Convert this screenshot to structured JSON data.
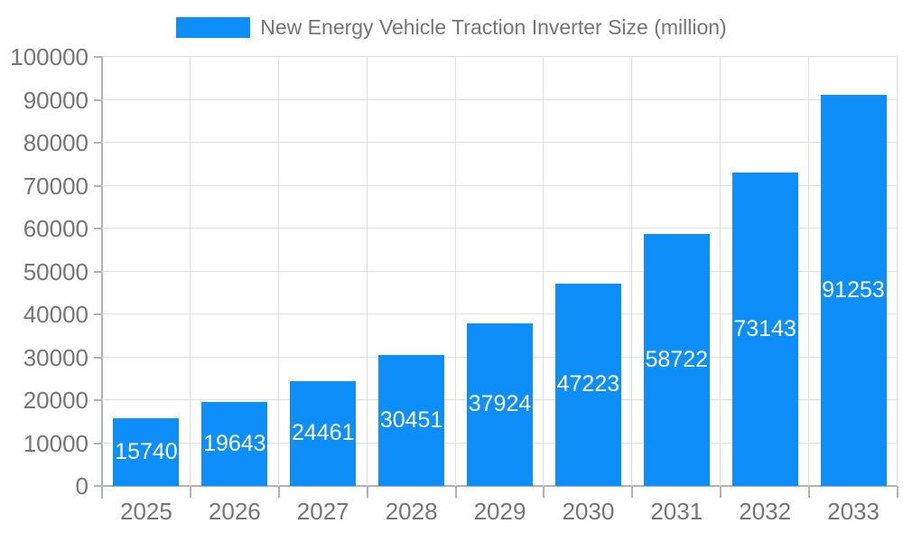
{
  "legend": {
    "label": "New Energy Vehicle Traction Inverter Size (million)"
  },
  "chart_data": {
    "type": "bar",
    "title": "New Energy Vehicle Traction Inverter Size (million)",
    "categories": [
      "2025",
      "2026",
      "2027",
      "2028",
      "2029",
      "2030",
      "2031",
      "2032",
      "2033"
    ],
    "values": [
      15740,
      19643,
      24461,
      30451,
      37924,
      47223,
      58722,
      73143,
      91253
    ],
    "bar_labels": [
      "15740",
      "19643",
      "24461",
      "30451",
      "37924",
      "47223",
      "58722",
      "73143",
      "91253"
    ],
    "xlabel": "",
    "ylabel": "",
    "ylim": [
      0,
      100000
    ],
    "ytick_step": 10000,
    "ytick_labels": [
      "0",
      "10000",
      "20000",
      "30000",
      "40000",
      "50000",
      "60000",
      "70000",
      "80000",
      "90000",
      "100000"
    ],
    "grid": true,
    "legend_position": "top",
    "colors": {
      "bar": "#0d8ef9",
      "bar_label": "#ffffff",
      "axis_text": "#757575",
      "legend_text": "#757575",
      "grid_line": "#e0e0e0",
      "axis_line": "#b3b3b3",
      "background": "#ffffff"
    }
  }
}
